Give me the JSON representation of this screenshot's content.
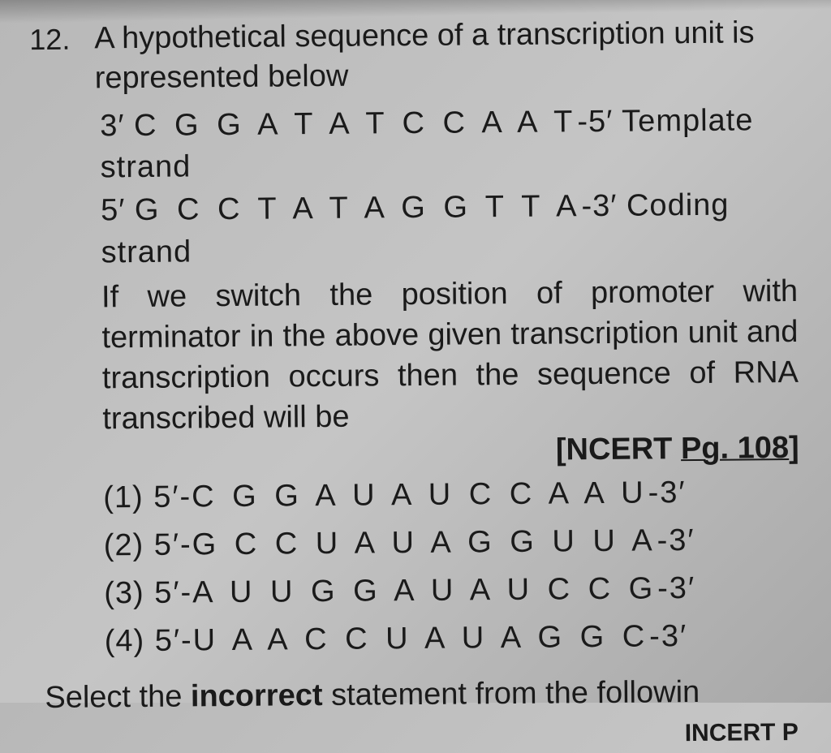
{
  "question": {
    "number": "12.",
    "stem_line1": "A hypothetical sequence of a transcription unit is",
    "stem_line2": "represented below",
    "template_strand_prefix": "3′",
    "template_strand_seq": "C G G A T A T C C A A T",
    "template_strand_suffix": "-5′ Template strand",
    "coding_strand_prefix": "5′",
    "coding_strand_seq": "G C C T A T A G G T T A",
    "coding_strand_suffix": "-3′ Coding strand",
    "body": "If we switch the position of promoter with terminator in the above given transcription unit and transcription occurs then the sequence of RNA transcribed will be",
    "ref_label": "[NCERT Pg. 108]",
    "ref_underline_part": "Pg. 108"
  },
  "options": [
    {
      "label": "(1)",
      "prefix": "5′-",
      "seq": "C G G A U A U C C A A U",
      "suffix": "-3′"
    },
    {
      "label": "(2)",
      "prefix": "5′-",
      "seq": "G C C U A U A G G U U A",
      "suffix": "-3′"
    },
    {
      "label": "(3)",
      "prefix": "5′-",
      "seq": "A U U G G A U A U C C G",
      "suffix": "-3′"
    },
    {
      "label": "(4)",
      "prefix": "5′-",
      "seq": "U A A C C U A U A G G C",
      "suffix": "-3′"
    }
  ],
  "followup": {
    "prefix": "Select the ",
    "bold": "incorrect",
    "suffix": " statement from the followin"
  },
  "partial_ref": "INCERT P"
}
